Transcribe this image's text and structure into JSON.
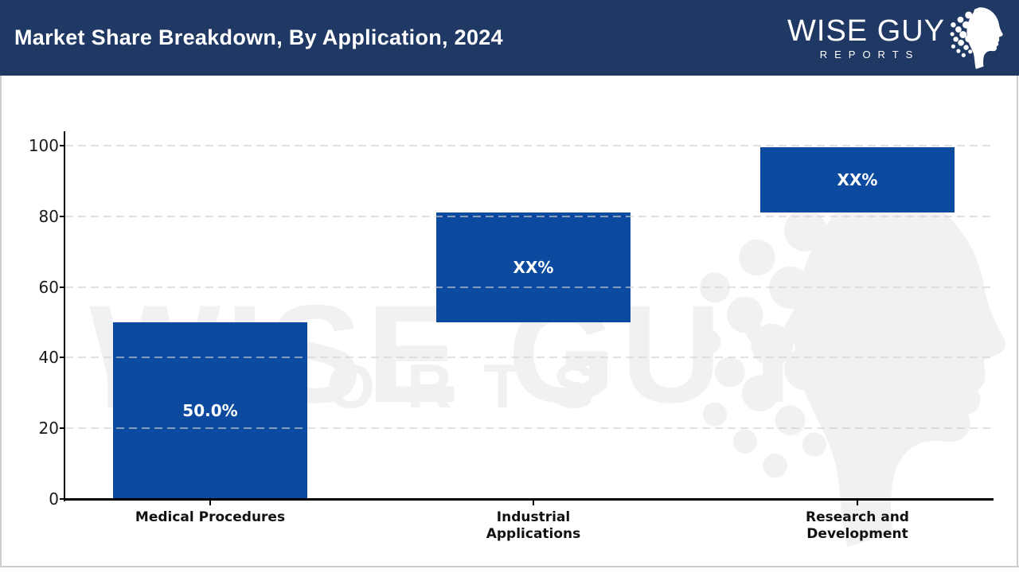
{
  "header": {
    "title": "Market Share Breakdown, By Application, 2024",
    "bg_color": "#1f3864",
    "logo_line1": "WISE GUY",
    "logo_line2": "REPORTS"
  },
  "watermark": {
    "line1": "WISE GUY",
    "line2": "REPORTS"
  },
  "chart_data": {
    "type": "bar",
    "subtype": "floating-waterfall-segments",
    "title": "Market Share Breakdown, By Application, 2024",
    "categories": [
      "Medical Procedures",
      "Industrial Applications",
      "Research and Development"
    ],
    "category_lines": [
      [
        "Medical Procedures"
      ],
      [
        "Industrial",
        "Applications"
      ],
      [
        "Research and",
        "Development"
      ]
    ],
    "segments": [
      {
        "category": "Medical Procedures",
        "start": 0,
        "end": 50,
        "label": "50.0%"
      },
      {
        "category": "Industrial Applications",
        "start": 50,
        "end": 81,
        "label": "XX%"
      },
      {
        "category": "Research and Development",
        "start": 81,
        "end": 99.5,
        "label": "XX%"
      }
    ],
    "xlabel": "",
    "ylabel": "",
    "ylim": [
      0,
      100
    ],
    "yticks": [
      0,
      20,
      40,
      60,
      80,
      100
    ],
    "grid": "horizontal-dashed",
    "legend": "none",
    "bar_color": "#0b4a9e",
    "bar_label_color": "#ffffff",
    "axis_color": "#000000",
    "tick_label_color": "#1a1a1a"
  }
}
